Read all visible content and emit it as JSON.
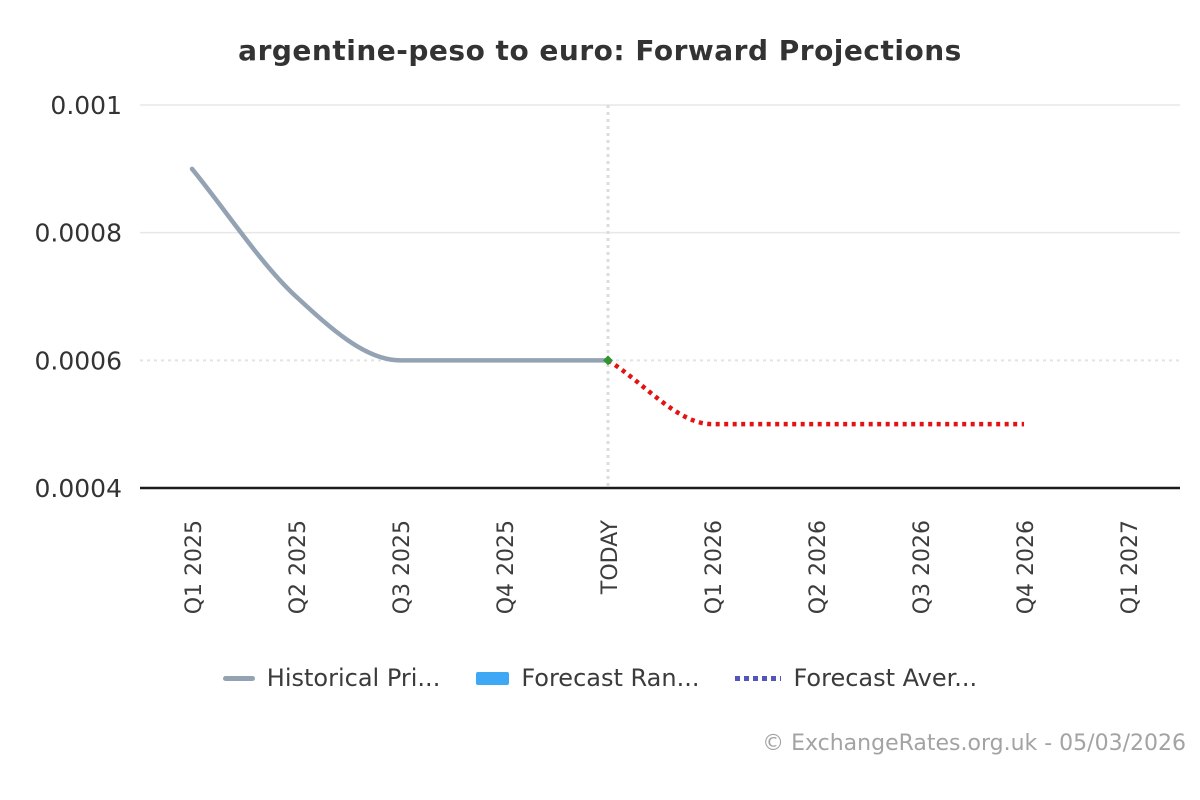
{
  "title": "argentine-peso to euro: Forward Projections",
  "chart_data": {
    "type": "line",
    "title": "argentine-peso to euro: Forward Projections",
    "categories": [
      "Q1 2025",
      "Q2 2025",
      "Q3 2025",
      "Q4 2025",
      "TODAY",
      "Q1 2026",
      "Q2 2026",
      "Q3 2026",
      "Q4 2026",
      "Q1 2027"
    ],
    "ylim": [
      0.0004,
      0.001
    ],
    "y_ticks": [
      {
        "label": "0.001",
        "value": 0.001,
        "line": "solid"
      },
      {
        "label": "0.0008",
        "value": 0.0008,
        "line": "solid"
      },
      {
        "label": "0.0006",
        "value": 0.0006,
        "line": "dotted"
      },
      {
        "label": "0.0004",
        "value": 0.0004,
        "line": "axis"
      }
    ],
    "grid": true,
    "legend_position": "bottom",
    "today_line": {
      "category": "TODAY",
      "style": "dotted",
      "color": "#dcdcdc"
    },
    "series": [
      {
        "name": "Historical Price",
        "color": "#94a3b4",
        "style": "solid",
        "points": [
          {
            "c": "Q1 2025",
            "v": 0.0009
          },
          {
            "c": "Q2 2025",
            "v": 0.0007
          },
          {
            "c": "Q3 2025",
            "v": 0.0006
          },
          {
            "c": "Q4 2025",
            "v": 0.0006
          },
          {
            "c": "TODAY",
            "v": 0.0006
          }
        ]
      },
      {
        "name": "Forecast Average",
        "color": "#e41312",
        "style": "dotted",
        "points": [
          {
            "c": "TODAY",
            "v": 0.0006
          },
          {
            "c": "Q1 2026",
            "v": 0.0005
          },
          {
            "c": "Q2 2026",
            "v": 0.0005
          },
          {
            "c": "Q3 2026",
            "v": 0.0005
          },
          {
            "c": "Q4 2026",
            "v": 0.0005
          }
        ]
      }
    ],
    "junction_marker": {
      "category": "TODAY",
      "value": 0.0006,
      "color": "#2f9632",
      "shape": "diamond"
    }
  },
  "legend": {
    "items": [
      {
        "label": "Historical Pri...",
        "marker": "line",
        "color": "#94a3b4"
      },
      {
        "label": "Forecast Ran...",
        "marker": "rect",
        "color": "#3fa8f4"
      },
      {
        "label": "Forecast Aver...",
        "marker": "dots",
        "color": "#5355b8"
      }
    ]
  },
  "footer": {
    "copyright": "© ExchangeRates.org.uk - 05/03/2026"
  }
}
